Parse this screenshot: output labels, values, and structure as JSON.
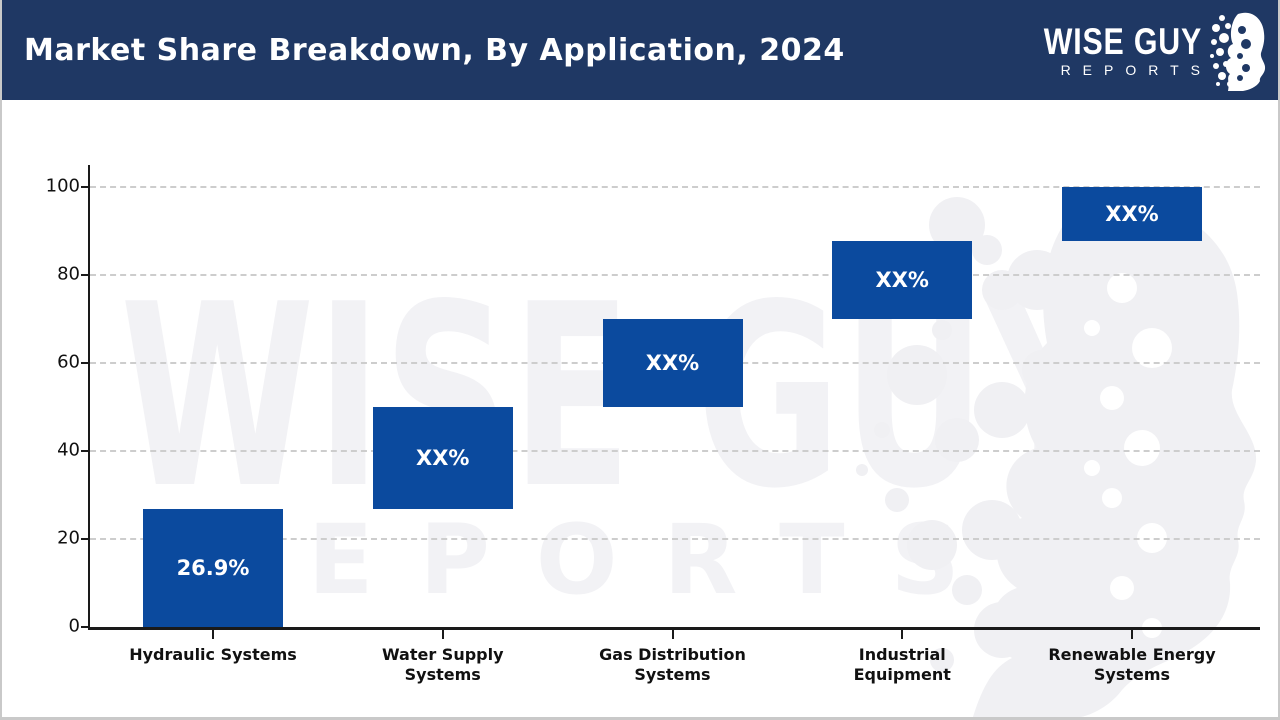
{
  "header": {
    "title": "Market Share Breakdown, By Application, 2024",
    "bg_color": "#1f3864",
    "logo": {
      "line1": "WISE GUY",
      "line2": "REPORTS"
    }
  },
  "watermark": {
    "line1": "WISE GUY",
    "line2": "REPORTS"
  },
  "chart_data": {
    "type": "bar",
    "subtype": "waterfall-floating-bars",
    "title": "Market Share Breakdown, By Application, 2024",
    "xlabel": "",
    "ylabel": "",
    "ylim": [
      0,
      100
    ],
    "yticks": [
      0,
      20,
      40,
      60,
      80,
      100
    ],
    "grid": "horizontal-dashed",
    "legend": "none",
    "bar_color": "#0b4a9e",
    "bar_label_color": "#ffffff",
    "axis_color": "#1a1a1a",
    "grid_color": "#cdcdcd",
    "categories": [
      {
        "label": "Hydraulic Systems",
        "lines": [
          "Hydraulic Systems"
        ]
      },
      {
        "label": "Water Supply Systems",
        "lines": [
          "Water Supply",
          "Systems"
        ]
      },
      {
        "label": "Gas Distribution Systems",
        "lines": [
          "Gas Distribution",
          "Systems"
        ]
      },
      {
        "label": "Industrial Equipment",
        "lines": [
          "Industrial",
          "Equipment"
        ]
      },
      {
        "label": "Renewable Energy Systems",
        "lines": [
          "Renewable Energy",
          "Systems"
        ]
      }
    ],
    "segments": [
      {
        "category": "Hydraulic Systems",
        "start": 0,
        "end": 26.9,
        "label": "26.9%"
      },
      {
        "category": "Water Supply Systems",
        "start": 26.9,
        "end": 50,
        "label": "XX%"
      },
      {
        "category": "Gas Distribution Systems",
        "start": 50,
        "end": 70,
        "label": "XX%"
      },
      {
        "category": "Industrial Equipment",
        "start": 70,
        "end": 87.7,
        "label": "XX%"
      },
      {
        "category": "Renewable Energy Systems",
        "start": 87.7,
        "end": 100,
        "label": "XX%"
      }
    ]
  }
}
